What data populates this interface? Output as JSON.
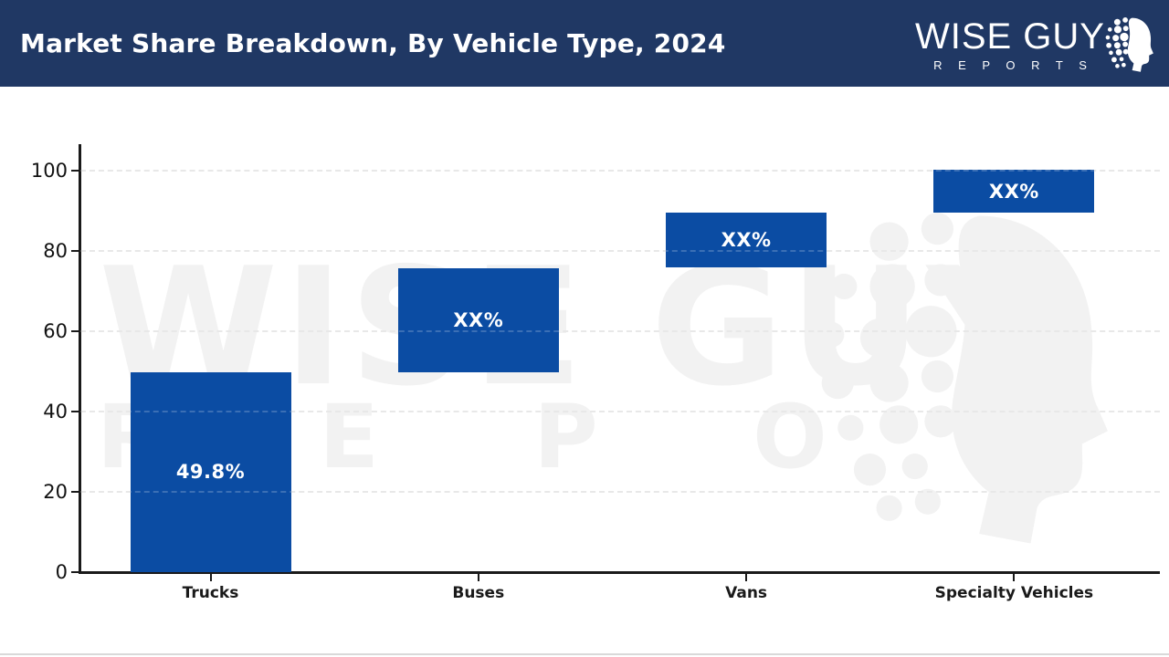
{
  "header": {
    "title": "Market Share Breakdown, By Vehicle Type, 2024",
    "logo": {
      "wordmark": "WISE GUY",
      "sub": "R E P O R T S",
      "icon": "dotted-head-profile"
    },
    "bg_color": "#203864"
  },
  "watermark": {
    "wordmark": "WISE GUY",
    "sub": "R E P O R T S",
    "icon": "dotted-head-profile",
    "color": "#f2f2f2"
  },
  "chart_data": {
    "type": "bar",
    "subtype": "waterfall-stacked-percentage",
    "title": "Market Share Breakdown, By Vehicle Type, 2024",
    "categories": [
      "Trucks",
      "Buses",
      "Vans",
      "Specialty Vehicles"
    ],
    "segments": [
      {
        "category": "Trucks",
        "start": 0,
        "end": 49.8,
        "label": "49.8%"
      },
      {
        "category": "Buses",
        "start": 49.8,
        "end": 75.7,
        "label": "XX%"
      },
      {
        "category": "Vans",
        "start": 75.9,
        "end": 89.5,
        "label": "XX%"
      },
      {
        "category": "Specialty Vehicles",
        "start": 89.5,
        "end": 100.2,
        "label": "XX%"
      }
    ],
    "yticks": [
      0,
      20,
      40,
      60,
      80,
      100
    ],
    "ylim": [
      0,
      106
    ],
    "xlabel": "",
    "ylabel": "",
    "grid": "horizontal-dashed",
    "legend": "none",
    "colors": {
      "bar": "#0b4ca3",
      "bar_label": "#ffffff",
      "axis": "#1a1a1a",
      "grid": "#e3e3e3",
      "header_bg": "#203864",
      "watermark": "#f2f2f2"
    }
  }
}
